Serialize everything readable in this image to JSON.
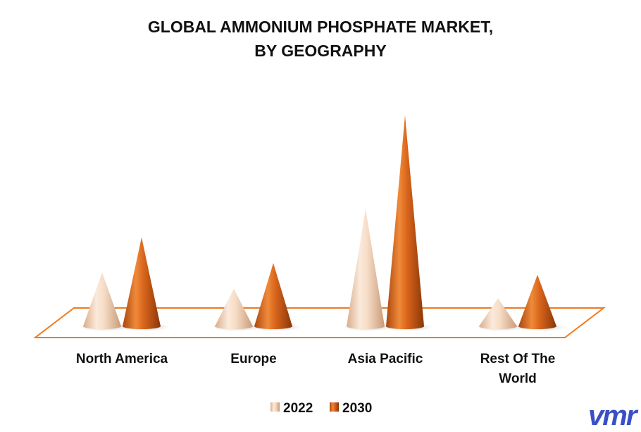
{
  "chart_data": {
    "type": "bar",
    "shape": "cone",
    "title": "GLOBAL AMMONIUM PHOSPHATE MARKET,",
    "subtitle": "BY GEOGRAPHY",
    "categories": [
      "North America",
      "Europe",
      "Asia Pacific",
      "Rest Of The World"
    ],
    "category_lines": [
      [
        "North America"
      ],
      [
        "Europe"
      ],
      [
        "Asia Pacific"
      ],
      [
        "Rest Of The",
        "World"
      ]
    ],
    "series": [
      {
        "name": "2022",
        "values": [
          2.3,
          1.6,
          5.0,
          1.2
        ]
      },
      {
        "name": "2030",
        "values": [
          3.8,
          2.7,
          9.0,
          2.2
        ]
      }
    ],
    "xlabel": "",
    "ylabel": "",
    "ylim": [
      0,
      9.2
    ],
    "grid": false,
    "legend_position": "bottom",
    "colors": {
      "2022": "#f3d3bb",
      "2030": "#d5661d",
      "floor_outline": "#f07a1e"
    }
  },
  "logo_text": "vmr",
  "logo_color": "#3a4fc6"
}
